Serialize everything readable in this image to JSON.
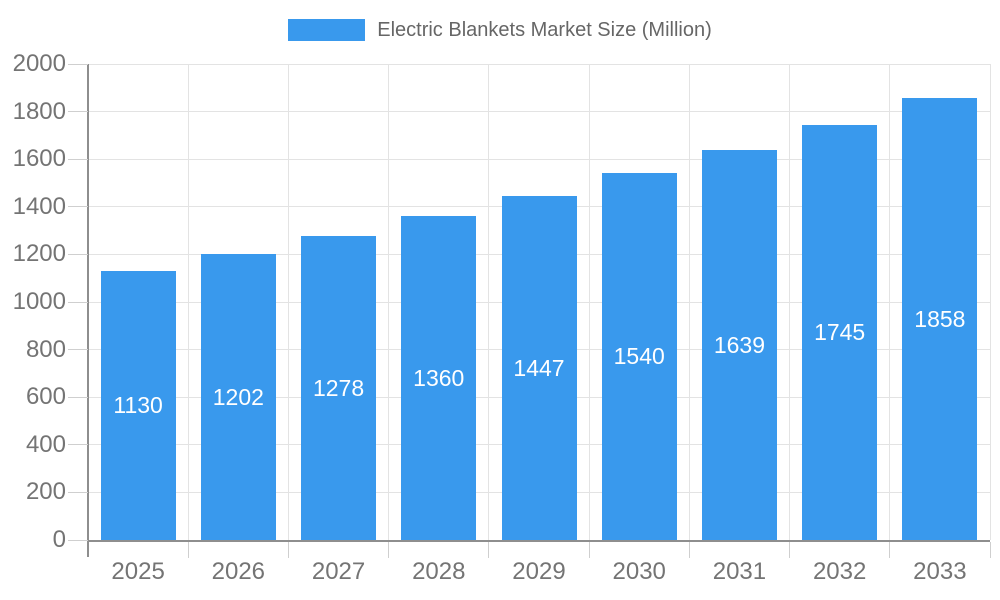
{
  "chart_data": {
    "type": "bar",
    "title": "Electric Blankets Market Size (Million)",
    "categories": [
      "2025",
      "2026",
      "2027",
      "2028",
      "2029",
      "2030",
      "2031",
      "2032",
      "2033"
    ],
    "values": [
      1130,
      1202,
      1278,
      1360,
      1447,
      1540,
      1639,
      1745,
      1858
    ],
    "series": [
      {
        "name": "Electric Blankets Market Size (Million)",
        "values": [
          1130,
          1202,
          1278,
          1360,
          1447,
          1540,
          1639,
          1745,
          1858
        ]
      }
    ],
    "xlabel": "",
    "ylabel": "",
    "ylim": [
      0,
      2000
    ],
    "yticks": [
      0,
      200,
      400,
      600,
      800,
      1000,
      1200,
      1400,
      1600,
      1800,
      2000
    ],
    "grid": true,
    "legend_position": "top",
    "bar_value_labels": true
  },
  "legend": {
    "label": "Electric Blankets Market Size (Million)"
  },
  "colors": {
    "bar": "#3999ED",
    "bar_label": "#FFFFFF",
    "axis_line": "#8E8E8E",
    "grid_line": "#E3E3E3",
    "tick_line": "#CFCFCF",
    "tick_label": "#747474",
    "legend_text": "#666666",
    "background": "#FFFFFF"
  }
}
